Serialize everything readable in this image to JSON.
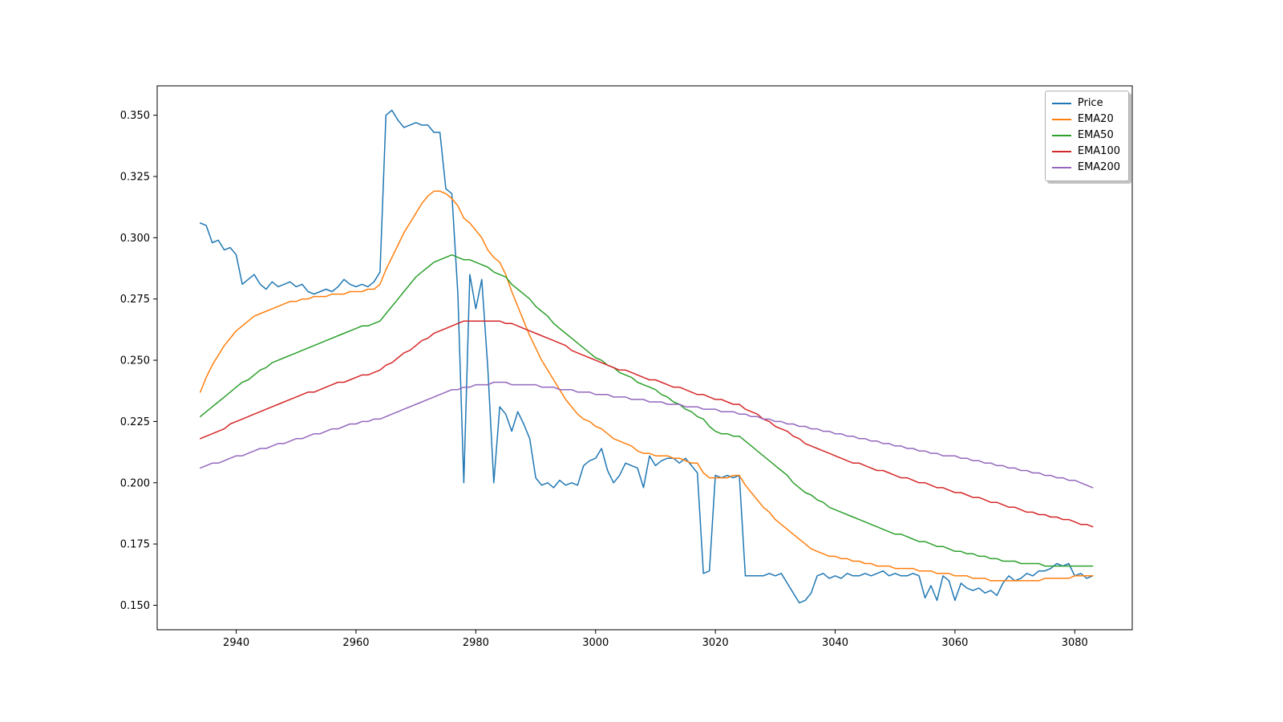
{
  "figure": {
    "background": "#ffffff",
    "axes_edge_color": "#000000",
    "tick_color": "#000000"
  },
  "chart_data": {
    "type": "line",
    "title": "",
    "xlabel": "",
    "ylabel": "",
    "grid": false,
    "legend_position": "upper right",
    "x_start": 2934,
    "x_step": 1,
    "x_end": 3083,
    "xlim": [
      2926.8,
      3089.6
    ],
    "ylim": [
      0.14,
      0.362
    ],
    "xticks": [
      2940,
      2960,
      2980,
      3000,
      3020,
      3040,
      3060,
      3080
    ],
    "yticks": [
      0.15,
      0.175,
      0.2,
      0.225,
      0.25,
      0.275,
      0.3,
      0.325,
      0.35
    ],
    "series": [
      {
        "name": "Price",
        "color": "#1f77b4",
        "values": [
          0.306,
          0.305,
          0.298,
          0.299,
          0.295,
          0.296,
          0.293,
          0.281,
          0.283,
          0.285,
          0.281,
          0.279,
          0.282,
          0.28,
          0.281,
          0.282,
          0.28,
          0.281,
          0.278,
          0.277,
          0.278,
          0.279,
          0.278,
          0.28,
          0.283,
          0.281,
          0.28,
          0.281,
          0.28,
          0.282,
          0.286,
          0.35,
          0.352,
          0.348,
          0.345,
          0.346,
          0.347,
          0.346,
          0.346,
          0.343,
          0.343,
          0.32,
          0.318,
          0.277,
          0.2,
          0.285,
          0.271,
          0.283,
          0.247,
          0.2,
          0.231,
          0.228,
          0.221,
          0.229,
          0.224,
          0.218,
          0.202,
          0.199,
          0.2,
          0.198,
          0.201,
          0.199,
          0.2,
          0.199,
          0.207,
          0.209,
          0.21,
          0.214,
          0.205,
          0.2,
          0.203,
          0.208,
          0.207,
          0.206,
          0.198,
          0.211,
          0.207,
          0.209,
          0.21,
          0.21,
          0.208,
          0.21,
          0.207,
          0.204,
          0.163,
          0.164,
          0.203,
          0.202,
          0.203,
          0.202,
          0.203,
          0.162,
          0.162,
          0.162,
          0.162,
          0.163,
          0.162,
          0.163,
          0.159,
          0.155,
          0.151,
          0.152,
          0.155,
          0.162,
          0.163,
          0.161,
          0.162,
          0.161,
          0.163,
          0.162,
          0.162,
          0.163,
          0.162,
          0.163,
          0.164,
          0.162,
          0.163,
          0.162,
          0.162,
          0.163,
          0.162,
          0.153,
          0.158,
          0.152,
          0.162,
          0.16,
          0.152,
          0.159,
          0.157,
          0.156,
          0.157,
          0.155,
          0.156,
          0.154,
          0.159,
          0.162,
          0.16,
          0.161,
          0.163,
          0.162,
          0.164,
          0.164,
          0.165,
          0.167,
          0.166,
          0.167,
          0.162,
          0.163,
          0.161,
          0.162
        ]
      },
      {
        "name": "EMA20",
        "color": "#ff7f0e",
        "values": [
          0.237,
          0.243,
          0.248,
          0.252,
          0.256,
          0.259,
          0.262,
          0.264,
          0.266,
          0.268,
          0.269,
          0.27,
          0.271,
          0.272,
          0.273,
          0.274,
          0.274,
          0.275,
          0.275,
          0.276,
          0.276,
          0.276,
          0.277,
          0.277,
          0.277,
          0.278,
          0.278,
          0.278,
          0.279,
          0.279,
          0.281,
          0.287,
          0.292,
          0.297,
          0.302,
          0.306,
          0.31,
          0.314,
          0.317,
          0.319,
          0.319,
          0.318,
          0.316,
          0.313,
          0.308,
          0.306,
          0.303,
          0.3,
          0.295,
          0.292,
          0.29,
          0.285,
          0.278,
          0.272,
          0.266,
          0.26,
          0.255,
          0.25,
          0.246,
          0.242,
          0.238,
          0.234,
          0.231,
          0.228,
          0.226,
          0.225,
          0.223,
          0.222,
          0.22,
          0.218,
          0.217,
          0.216,
          0.215,
          0.213,
          0.212,
          0.212,
          0.211,
          0.211,
          0.211,
          0.21,
          0.21,
          0.209,
          0.208,
          0.208,
          0.204,
          0.202,
          0.202,
          0.202,
          0.202,
          0.203,
          0.203,
          0.199,
          0.196,
          0.193,
          0.19,
          0.188,
          0.185,
          0.183,
          0.181,
          0.179,
          0.177,
          0.175,
          0.173,
          0.172,
          0.171,
          0.17,
          0.17,
          0.169,
          0.169,
          0.168,
          0.168,
          0.167,
          0.167,
          0.166,
          0.166,
          0.166,
          0.165,
          0.165,
          0.165,
          0.165,
          0.164,
          0.164,
          0.164,
          0.163,
          0.163,
          0.163,
          0.162,
          0.162,
          0.162,
          0.161,
          0.161,
          0.161,
          0.16,
          0.16,
          0.16,
          0.16,
          0.16,
          0.16,
          0.16,
          0.16,
          0.16,
          0.161,
          0.161,
          0.161,
          0.161,
          0.161,
          0.162,
          0.162,
          0.162,
          0.162
        ]
      },
      {
        "name": "EMA50",
        "color": "#2ca02c",
        "values": [
          0.227,
          0.229,
          0.231,
          0.233,
          0.235,
          0.237,
          0.239,
          0.241,
          0.242,
          0.244,
          0.246,
          0.247,
          0.249,
          0.25,
          0.251,
          0.252,
          0.253,
          0.254,
          0.255,
          0.256,
          0.257,
          0.258,
          0.259,
          0.26,
          0.261,
          0.262,
          0.263,
          0.264,
          0.264,
          0.265,
          0.266,
          0.269,
          0.272,
          0.275,
          0.278,
          0.281,
          0.284,
          0.286,
          0.288,
          0.29,
          0.291,
          0.292,
          0.293,
          0.292,
          0.291,
          0.291,
          0.29,
          0.289,
          0.288,
          0.286,
          0.285,
          0.284,
          0.281,
          0.279,
          0.277,
          0.275,
          0.272,
          0.27,
          0.268,
          0.265,
          0.263,
          0.261,
          0.259,
          0.257,
          0.255,
          0.253,
          0.251,
          0.25,
          0.248,
          0.247,
          0.245,
          0.244,
          0.243,
          0.241,
          0.24,
          0.239,
          0.238,
          0.236,
          0.235,
          0.233,
          0.232,
          0.23,
          0.229,
          0.227,
          0.226,
          0.223,
          0.221,
          0.22,
          0.22,
          0.219,
          0.219,
          0.217,
          0.215,
          0.213,
          0.211,
          0.209,
          0.207,
          0.205,
          0.203,
          0.2,
          0.198,
          0.196,
          0.195,
          0.193,
          0.192,
          0.19,
          0.189,
          0.188,
          0.187,
          0.186,
          0.185,
          0.184,
          0.183,
          0.182,
          0.181,
          0.18,
          0.179,
          0.179,
          0.178,
          0.177,
          0.176,
          0.176,
          0.175,
          0.174,
          0.174,
          0.173,
          0.172,
          0.172,
          0.171,
          0.171,
          0.17,
          0.17,
          0.169,
          0.169,
          0.168,
          0.168,
          0.168,
          0.167,
          0.167,
          0.167,
          0.167,
          0.166,
          0.166,
          0.166,
          0.166,
          0.166,
          0.166,
          0.166,
          0.166,
          0.166
        ]
      },
      {
        "name": "EMA100",
        "color": "#d62728",
        "values": [
          0.218,
          0.219,
          0.22,
          0.221,
          0.222,
          0.224,
          0.225,
          0.226,
          0.227,
          0.228,
          0.229,
          0.23,
          0.231,
          0.232,
          0.233,
          0.234,
          0.235,
          0.236,
          0.237,
          0.237,
          0.238,
          0.239,
          0.24,
          0.241,
          0.241,
          0.242,
          0.243,
          0.244,
          0.244,
          0.245,
          0.246,
          0.248,
          0.249,
          0.251,
          0.253,
          0.254,
          0.256,
          0.258,
          0.259,
          0.261,
          0.262,
          0.263,
          0.264,
          0.265,
          0.266,
          0.266,
          0.266,
          0.266,
          0.266,
          0.266,
          0.266,
          0.265,
          0.265,
          0.264,
          0.263,
          0.262,
          0.261,
          0.26,
          0.259,
          0.258,
          0.257,
          0.256,
          0.254,
          0.253,
          0.252,
          0.251,
          0.25,
          0.249,
          0.248,
          0.247,
          0.246,
          0.246,
          0.245,
          0.244,
          0.243,
          0.242,
          0.242,
          0.241,
          0.24,
          0.239,
          0.239,
          0.238,
          0.237,
          0.236,
          0.236,
          0.235,
          0.234,
          0.234,
          0.233,
          0.232,
          0.232,
          0.23,
          0.229,
          0.228,
          0.226,
          0.225,
          0.223,
          0.222,
          0.221,
          0.219,
          0.218,
          0.216,
          0.215,
          0.214,
          0.213,
          0.212,
          0.211,
          0.21,
          0.209,
          0.208,
          0.208,
          0.207,
          0.206,
          0.205,
          0.205,
          0.204,
          0.203,
          0.202,
          0.202,
          0.201,
          0.2,
          0.2,
          0.199,
          0.198,
          0.198,
          0.197,
          0.196,
          0.196,
          0.195,
          0.194,
          0.194,
          0.193,
          0.192,
          0.192,
          0.191,
          0.19,
          0.19,
          0.189,
          0.188,
          0.188,
          0.187,
          0.187,
          0.186,
          0.186,
          0.185,
          0.185,
          0.184,
          0.183,
          0.183,
          0.182
        ]
      },
      {
        "name": "EMA200",
        "color": "#9467bd",
        "values": [
          0.206,
          0.207,
          0.208,
          0.208,
          0.209,
          0.21,
          0.211,
          0.211,
          0.212,
          0.213,
          0.214,
          0.214,
          0.215,
          0.216,
          0.216,
          0.217,
          0.218,
          0.218,
          0.219,
          0.22,
          0.22,
          0.221,
          0.222,
          0.222,
          0.223,
          0.224,
          0.224,
          0.225,
          0.225,
          0.226,
          0.226,
          0.227,
          0.228,
          0.229,
          0.23,
          0.231,
          0.232,
          0.233,
          0.234,
          0.235,
          0.236,
          0.237,
          0.238,
          0.238,
          0.239,
          0.239,
          0.24,
          0.24,
          0.24,
          0.241,
          0.241,
          0.241,
          0.24,
          0.24,
          0.24,
          0.24,
          0.24,
          0.239,
          0.239,
          0.239,
          0.238,
          0.238,
          0.238,
          0.237,
          0.237,
          0.237,
          0.236,
          0.236,
          0.236,
          0.235,
          0.235,
          0.235,
          0.234,
          0.234,
          0.234,
          0.233,
          0.233,
          0.233,
          0.232,
          0.232,
          0.232,
          0.231,
          0.231,
          0.231,
          0.23,
          0.23,
          0.23,
          0.229,
          0.229,
          0.229,
          0.228,
          0.228,
          0.227,
          0.227,
          0.226,
          0.226,
          0.225,
          0.225,
          0.224,
          0.224,
          0.223,
          0.223,
          0.222,
          0.222,
          0.221,
          0.221,
          0.22,
          0.22,
          0.219,
          0.219,
          0.218,
          0.218,
          0.217,
          0.217,
          0.216,
          0.216,
          0.215,
          0.215,
          0.214,
          0.214,
          0.213,
          0.213,
          0.212,
          0.212,
          0.211,
          0.211,
          0.211,
          0.21,
          0.21,
          0.209,
          0.209,
          0.208,
          0.208,
          0.207,
          0.207,
          0.206,
          0.206,
          0.205,
          0.205,
          0.204,
          0.204,
          0.203,
          0.203,
          0.202,
          0.202,
          0.201,
          0.201,
          0.2,
          0.199,
          0.198
        ]
      }
    ]
  }
}
